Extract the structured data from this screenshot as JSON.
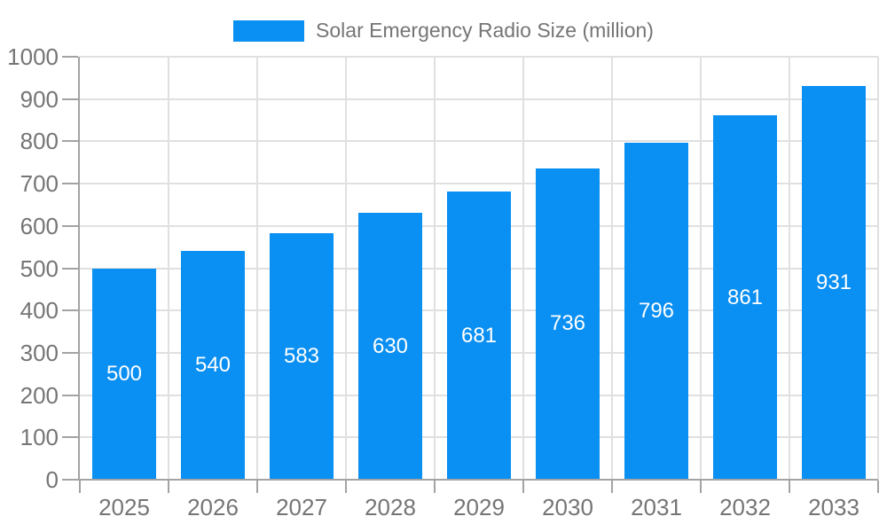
{
  "chart_data": {
    "type": "bar",
    "title": "Solar Emergency Radio Size (million)",
    "categories": [
      "2025",
      "2026",
      "2027",
      "2028",
      "2029",
      "2030",
      "2031",
      "2032",
      "2033"
    ],
    "values": [
      500,
      540,
      583,
      630,
      681,
      736,
      796,
      861,
      931
    ],
    "xlabel": "",
    "ylabel": "",
    "ylim": [
      0,
      1000
    ],
    "ytick_step": 100,
    "grid": true,
    "legend_position": "top-center",
    "colors": {
      "bar": "#0a8ff2",
      "grid": "#e0e0e0",
      "axis": "#a3a3a3",
      "tick_label": "#757575",
      "bar_label": "#ffffff",
      "background": "#ffffff"
    }
  }
}
